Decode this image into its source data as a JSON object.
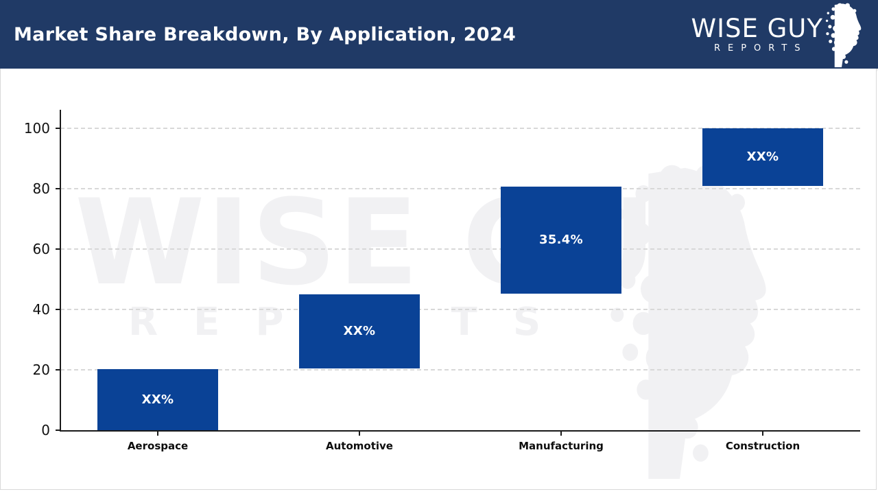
{
  "header": {
    "title": "Market Share Breakdown, By Application, 2024",
    "logo": {
      "line1": "WISE GUY",
      "line2": "REPORTS"
    }
  },
  "watermark": {
    "line1": "WISE GU",
    "line2": "REPORTS"
  },
  "colors": {
    "header_bg": "#203a66",
    "bar": "#0a4296",
    "gridline": "#d8d8d8",
    "watermark": "#f1f1f3"
  },
  "chart_data": {
    "type": "bar",
    "subtype": "waterfall",
    "title": "Market Share Breakdown, By Application, 2024",
    "categories": [
      "Aerospace",
      "Automotive",
      "Manufacturing",
      "Construction"
    ],
    "bars": [
      {
        "category": "Aerospace",
        "start": 0,
        "end": 20.3,
        "label": "XX%"
      },
      {
        "category": "Automotive",
        "start": 20.5,
        "end": 45.0,
        "label": "XX%"
      },
      {
        "category": "Manufacturing",
        "start": 45.3,
        "end": 80.7,
        "label": "35.4%"
      },
      {
        "category": "Construction",
        "start": 81.0,
        "end": 100.0,
        "label": "XX%"
      }
    ],
    "xlabel": "",
    "ylabel": "",
    "ylim": [
      0,
      105
    ],
    "yticks": [
      0,
      20,
      40,
      60,
      80,
      100
    ],
    "grid": "horizontal-dashed",
    "legend": "none"
  }
}
